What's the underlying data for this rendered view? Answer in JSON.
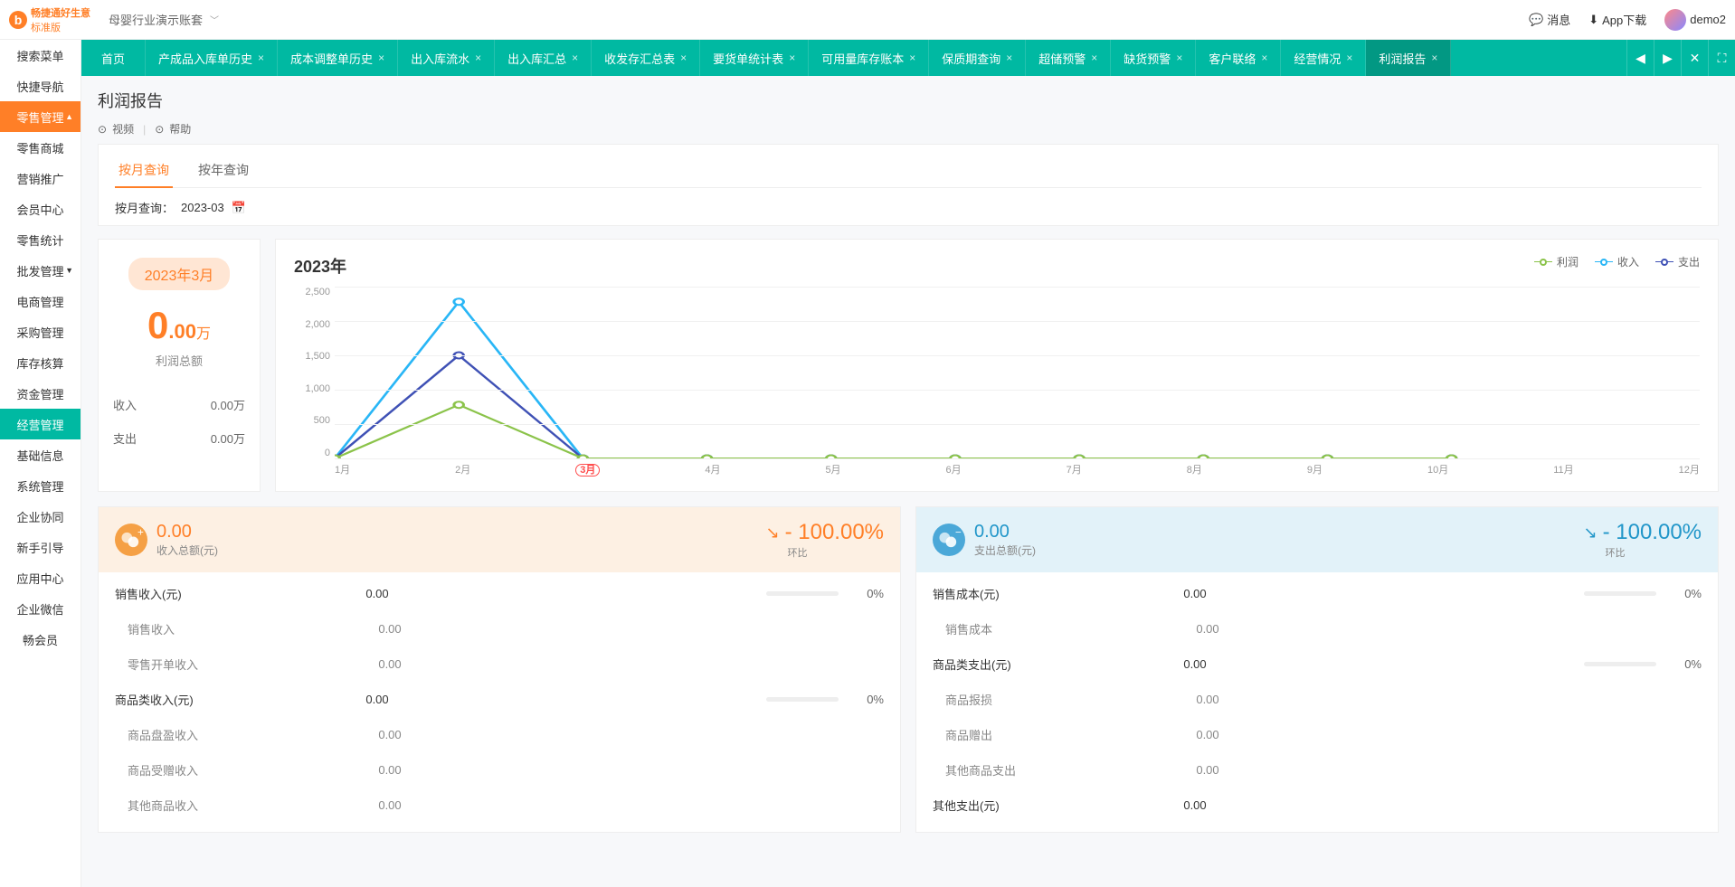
{
  "logo": {
    "brand": "畅捷通好生意",
    "edition": "标准版"
  },
  "account_name": "母婴行业演示账套",
  "topbar": {
    "msg": "消息",
    "app": "App下载",
    "user": "demo2"
  },
  "sidebar": [
    {
      "label": "搜索菜单",
      "active": false
    },
    {
      "label": "快捷导航",
      "active": false
    },
    {
      "label": "零售管理",
      "active": "orange",
      "caret": "▲"
    },
    {
      "label": "零售商城",
      "active": false
    },
    {
      "label": "营销推广",
      "active": false
    },
    {
      "label": "会员中心",
      "active": false
    },
    {
      "label": "零售统计",
      "active": false
    },
    {
      "label": "批发管理",
      "active": false,
      "caret": "▼"
    },
    {
      "label": "电商管理",
      "active": false
    },
    {
      "label": "采购管理",
      "active": false
    },
    {
      "label": "库存核算",
      "active": false
    },
    {
      "label": "资金管理",
      "active": false
    },
    {
      "label": "经营管理",
      "active": "teal"
    },
    {
      "label": "基础信息",
      "active": false
    },
    {
      "label": "系统管理",
      "active": false
    },
    {
      "label": "企业协同",
      "active": false
    },
    {
      "label": "新手引导",
      "active": false
    },
    {
      "label": "应用中心",
      "active": false
    },
    {
      "label": "企业微信",
      "active": false
    },
    {
      "label": "畅会员",
      "active": false
    }
  ],
  "tabs": {
    "home": "首页",
    "items": [
      "产成品入库单历史",
      "成本调整单历史",
      "出入库流水",
      "出入库汇总",
      "收发存汇总表",
      "要货单统计表",
      "可用量库存账本",
      "保质期查询",
      "超储预警",
      "缺货预警",
      "客户联络",
      "经营情况",
      "利润报告"
    ],
    "active_index": 12
  },
  "page": {
    "title": "利润报告",
    "video": "视频",
    "help": "帮助",
    "query_tabs": [
      "按月查询",
      "按年查询"
    ],
    "active_qtab": 0,
    "query_label": "按月查询：",
    "query_value": "2023-03"
  },
  "summary": {
    "period": "2023年3月",
    "profit_int": "0",
    "profit_dec": ".00",
    "profit_unit": "万",
    "profit_label": "利润总额",
    "rows": [
      {
        "label": "收入",
        "value": "0.00万"
      },
      {
        "label": "支出",
        "value": "0.00万"
      }
    ]
  },
  "chart": {
    "title": "2023年",
    "y_ticks": [
      "2,500",
      "2,000",
      "1,500",
      "1,000",
      "500",
      "0"
    ],
    "x_ticks": [
      "1月",
      "2月",
      "3月",
      "4月",
      "5月",
      "6月",
      "7月",
      "8月",
      "9月",
      "10月",
      "11月",
      "12月"
    ],
    "highlight_x_index": 2,
    "legend": [
      {
        "label": "利润",
        "color": "#8bc34a"
      },
      {
        "label": "收入",
        "color": "#29b6f6"
      },
      {
        "label": "支出",
        "color": "#3f51b5"
      }
    ],
    "series": {
      "profit": [
        0,
        780,
        0,
        0,
        0,
        0,
        0,
        0,
        0,
        0,
        null,
        null
      ],
      "income": [
        0,
        2280,
        0,
        0,
        0,
        0,
        0,
        0,
        0,
        0,
        null,
        null
      ],
      "expense": [
        0,
        1500,
        0,
        0,
        0,
        0,
        0,
        0,
        0,
        0,
        null,
        null
      ]
    },
    "y_max": 2500
  },
  "income_card": {
    "value": "0.00",
    "label": "收入总额(元)",
    "change_label": "环比",
    "change": "- 100.00%",
    "rows": [
      {
        "label": "销售收入(元)",
        "value": "0.00",
        "pct": "0%",
        "bold": true
      },
      {
        "label": "销售收入",
        "value": "0.00",
        "sub": true
      },
      {
        "label": "零售开单收入",
        "value": "0.00",
        "sub": true
      },
      {
        "label": "商品类收入(元)",
        "value": "0.00",
        "pct": "0%",
        "bold": true
      },
      {
        "label": "商品盘盈收入",
        "value": "0.00",
        "sub": true
      },
      {
        "label": "商品受赠收入",
        "value": "0.00",
        "sub": true
      },
      {
        "label": "其他商品收入",
        "value": "0.00",
        "sub": true
      }
    ]
  },
  "expense_card": {
    "value": "0.00",
    "label": "支出总额(元)",
    "change_label": "环比",
    "change": "- 100.00%",
    "rows": [
      {
        "label": "销售成本(元)",
        "value": "0.00",
        "pct": "0%",
        "bold": true
      },
      {
        "label": "销售成本",
        "value": "0.00",
        "sub": true
      },
      {
        "label": "商品类支出(元)",
        "value": "0.00",
        "pct": "0%",
        "bold": true
      },
      {
        "label": "商品报损",
        "value": "0.00",
        "sub": true
      },
      {
        "label": "商品赠出",
        "value": "0.00",
        "sub": true
      },
      {
        "label": "其他商品支出",
        "value": "0.00",
        "sub": true
      },
      {
        "label": "其他支出(元)",
        "value": "0.00",
        "bold": true
      }
    ]
  },
  "colors": {
    "accent_orange": "#ff7f27",
    "accent_teal": "#00b9a2",
    "income": "#f5a045",
    "expense": "#4ba8d8"
  }
}
